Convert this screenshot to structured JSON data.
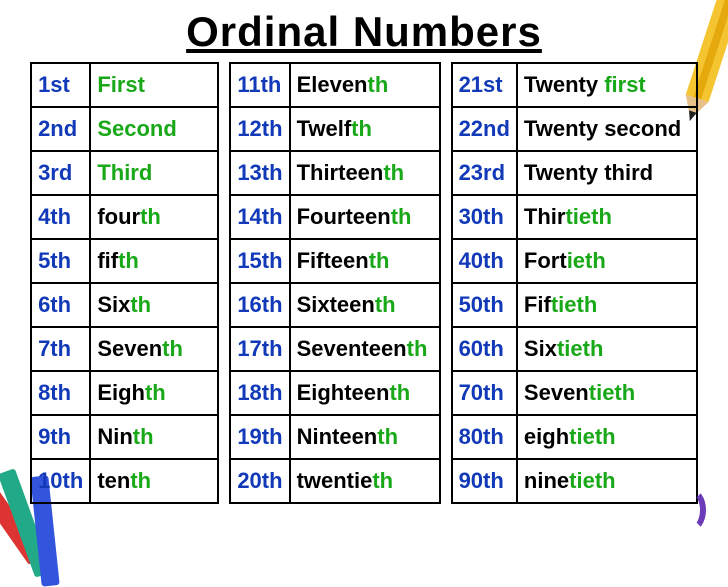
{
  "title": "Ordinal Numbers",
  "colors": {
    "ordinal": "#1139b8",
    "highlight": "#18a818",
    "text": "#000000",
    "border": "#000000",
    "background": "#ffffff"
  },
  "fonts": {
    "family": "Comic Sans MS",
    "title_size_pt": 32,
    "cell_size_pt": 17,
    "weight": "bold"
  },
  "layout": {
    "columns": 3,
    "rows_per_column": 10
  },
  "columns": [
    {
      "rows": [
        {
          "ord": "1st",
          "word_pre": "",
          "word_hl": "First",
          "word_post": ""
        },
        {
          "ord": "2nd",
          "word_pre": "",
          "word_hl": "Second",
          "word_post": ""
        },
        {
          "ord": "3rd",
          "word_pre": "",
          "word_hl": "Third",
          "word_post": ""
        },
        {
          "ord": "4th",
          "word_pre": "four",
          "word_hl": "th",
          "word_post": ""
        },
        {
          "ord": "5th",
          "word_pre": "fif",
          "word_hl": "th",
          "word_post": ""
        },
        {
          "ord": "6th",
          "word_pre": "Six",
          "word_hl": "th",
          "word_post": ""
        },
        {
          "ord": "7th",
          "word_pre": "Seven",
          "word_hl": "th",
          "word_post": ""
        },
        {
          "ord": "8th",
          "word_pre": "Eigh",
          "word_hl": "th",
          "word_post": ""
        },
        {
          "ord": "9th",
          "word_pre": "Nin",
          "word_hl": "th",
          "word_post": ""
        },
        {
          "ord": "10th",
          "word_pre": "ten",
          "word_hl": "th",
          "word_post": ""
        }
      ]
    },
    {
      "rows": [
        {
          "ord": "11th",
          "word_pre": "Eleven",
          "word_hl": "th",
          "word_post": ""
        },
        {
          "ord": "12th",
          "word_pre": "Twelf",
          "word_hl": "th",
          "word_post": ""
        },
        {
          "ord": "13th",
          "word_pre": "Thirteen",
          "word_hl": "th",
          "word_post": ""
        },
        {
          "ord": "14th",
          "word_pre": "Fourteen",
          "word_hl": "th",
          "word_post": ""
        },
        {
          "ord": "15th",
          "word_pre": "Fifteen",
          "word_hl": "th",
          "word_post": ""
        },
        {
          "ord": "16th",
          "word_pre": "Sixteen",
          "word_hl": "th",
          "word_post": ""
        },
        {
          "ord": "17th",
          "word_pre": "Seventeen",
          "word_hl": "th",
          "word_post": ""
        },
        {
          "ord": "18th",
          "word_pre": "Eighteen",
          "word_hl": "th",
          "word_post": ""
        },
        {
          "ord": "19th",
          "word_pre": "Ninteen",
          "word_hl": "th",
          "word_post": ""
        },
        {
          "ord": "20th",
          "word_pre": "twentie",
          "word_hl": "th",
          "word_post": ""
        }
      ]
    },
    {
      "rows": [
        {
          "ord": "21st",
          "word_pre": "Twenty ",
          "word_hl": "first",
          "word_post": ""
        },
        {
          "ord": "22nd",
          "word_pre": "Twenty second",
          "word_hl": "",
          "word_post": ""
        },
        {
          "ord": "23rd",
          "word_pre": "Twenty third",
          "word_hl": "",
          "word_post": ""
        },
        {
          "ord": "30th",
          "word_pre": "Thir",
          "word_hl": "tieth",
          "word_post": ""
        },
        {
          "ord": "40th",
          "word_pre": "Fort",
          "word_hl": "ieth",
          "word_post": ""
        },
        {
          "ord": "50th",
          "word_pre": "Fif",
          "word_hl": "tieth",
          "word_post": ""
        },
        {
          "ord": "60th",
          "word_pre": "Six",
          "word_hl": "tieth",
          "word_post": ""
        },
        {
          "ord": "70th",
          "word_pre": "Seven",
          "word_hl": "tieth",
          "word_post": ""
        },
        {
          "ord": "80th",
          "word_pre": "eigh",
          "word_hl": "tieth",
          "word_post": ""
        },
        {
          "ord": "90th",
          "word_pre": "nine",
          "word_hl": "tieth",
          "word_post": ""
        }
      ]
    }
  ]
}
